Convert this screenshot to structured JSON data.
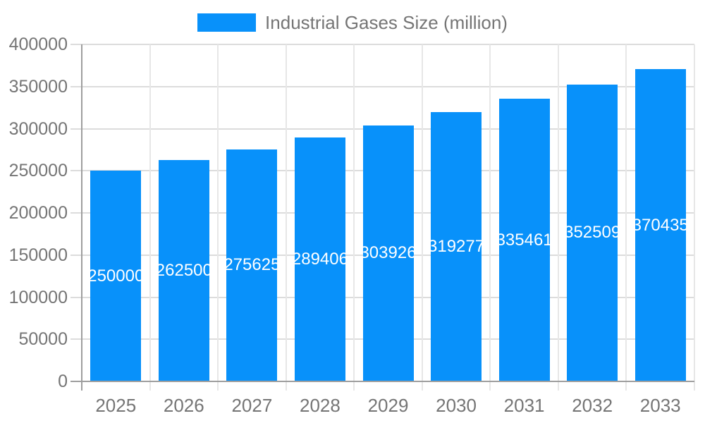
{
  "legend": {
    "series_label": "Industrial Gases Size (million)"
  },
  "colors": {
    "bar": "#0891fa",
    "axis_text": "#757575",
    "grid_horizontal": "#dcdcdc",
    "grid_vertical": "#e7e7e7",
    "axis_line": "#9e9e9e",
    "value_label_text": "#ffffff",
    "background": "#ffffff"
  },
  "chart_data": {
    "type": "bar",
    "title": "",
    "categories": [
      "2025",
      "2026",
      "2027",
      "2028",
      "2029",
      "2030",
      "2031",
      "2032",
      "2033"
    ],
    "series": [
      {
        "name": "Industrial Gases Size (million)",
        "color": "#0891fa",
        "values": [
          250000,
          262500,
          275625,
          289406,
          303926,
          319277,
          335461,
          352509,
          370435
        ]
      }
    ],
    "value_labels": [
      "250000",
      "262500",
      "275625",
      "289406",
      "303926",
      "319277",
      "335461",
      "352509",
      "370435"
    ],
    "xlabel": "",
    "ylabel": "",
    "ylim": [
      0,
      400000
    ],
    "ytick_step": 50000,
    "ytick_labels": [
      "0",
      "50000",
      "100000",
      "150000",
      "200000",
      "250000",
      "300000",
      "350000",
      "400000"
    ],
    "grid": true,
    "legend_position": "top"
  }
}
